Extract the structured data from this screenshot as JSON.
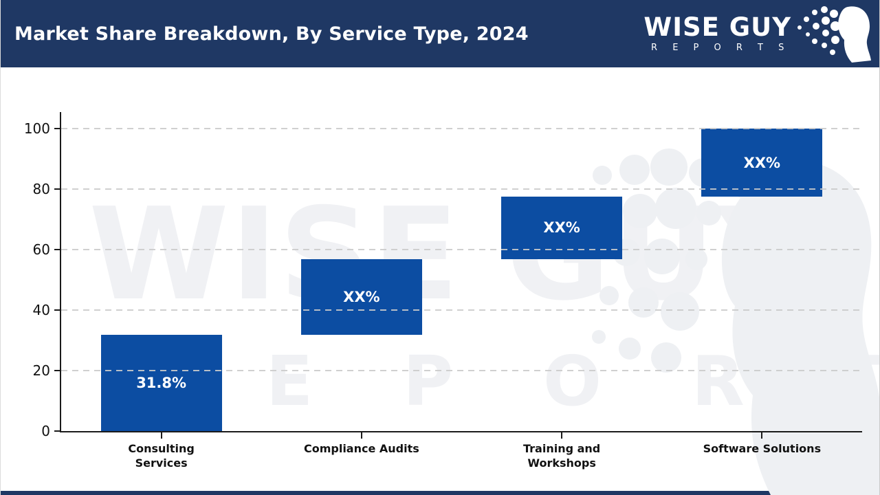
{
  "header": {
    "title": "Market Share Breakdown, By Service Type, 2024",
    "bg_color": "#1f3864",
    "logo": {
      "line1": "WISE GUY",
      "line2": "R E P O R T S"
    }
  },
  "watermark": {
    "line1": "WISE GUY",
    "line2": "R E P O R T S"
  },
  "colors": {
    "header_navy": "#1f3864",
    "bar_blue": "#0c4da2",
    "grid_gray": "#cbcbcb",
    "watermark_gray": "#f0f1f4",
    "axis_black": "#1a1a1a"
  },
  "chart_data": {
    "type": "bar",
    "subtype": "waterfall-steps",
    "title": "Market Share Breakdown, By Service Type, 2024",
    "xlabel": "",
    "ylabel": "",
    "ylim": [
      0,
      105
    ],
    "yticks": [
      0,
      20,
      40,
      60,
      80,
      100
    ],
    "grid": "horizontal-dashed-over-bars",
    "legend": "none",
    "categories": [
      "Consulting Services",
      "Compliance Audits",
      "Training and Workshops",
      "Software Solutions"
    ],
    "category_label_lines": [
      [
        "Consulting",
        "Services"
      ],
      [
        "Compliance Audits"
      ],
      [
        "Training and",
        "Workshops"
      ],
      [
        "Software Solutions"
      ]
    ],
    "bars": [
      {
        "category": "Consulting Services",
        "start": 0,
        "end": 31.8,
        "label": "31.8%"
      },
      {
        "category": "Compliance Audits",
        "start": 31.8,
        "end": 56.9,
        "label": "XX%"
      },
      {
        "category": "Training and Workshops",
        "start": 56.9,
        "end": 77.5,
        "label": "XX%"
      },
      {
        "category": "Software Solutions",
        "start": 77.5,
        "end": 100,
        "label": "XX%"
      }
    ]
  }
}
